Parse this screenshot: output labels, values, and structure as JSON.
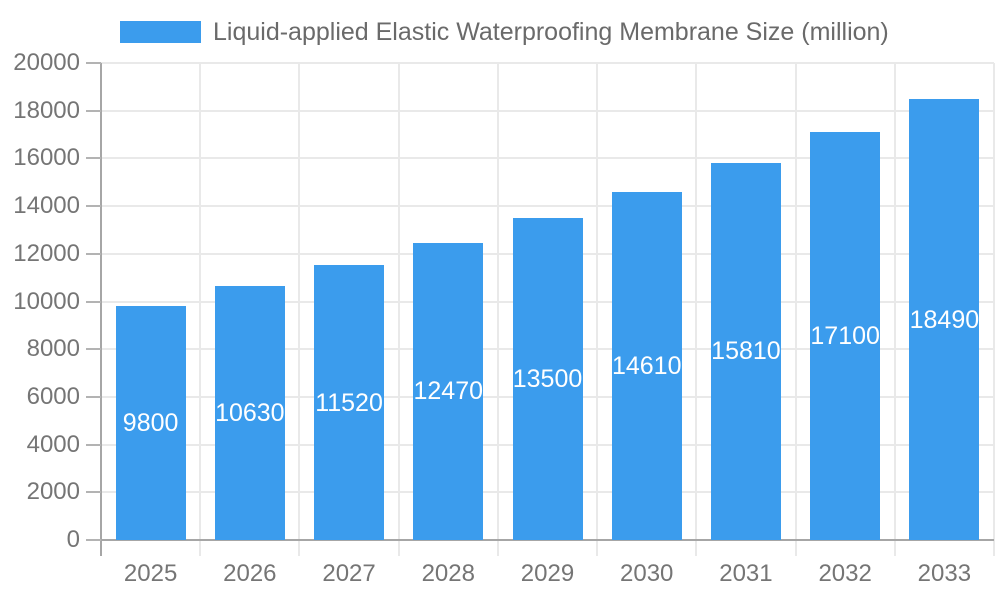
{
  "legend": {
    "position": "top-left"
  },
  "colors": {
    "bar": "#3B9CED",
    "grid": "#E9E9E9",
    "axis": "#A6A6A6",
    "tick": "#B3B3B3",
    "tick_text": "#757575",
    "legend_text": "#6A6A6A",
    "bar_label_text": "#FFFFFF",
    "background": "#FFFFFF"
  },
  "chart_data": {
    "type": "bar",
    "title": "Liquid-applied Elastic Waterproofing Membrane Size (million)",
    "categories": [
      "2025",
      "2026",
      "2027",
      "2028",
      "2029",
      "2030",
      "2031",
      "2032",
      "2033"
    ],
    "series": [
      {
        "name": "Liquid-applied Elastic Waterproofing Membrane Size (million)",
        "values": [
          9800,
          10630,
          11520,
          12470,
          13500,
          14610,
          15810,
          17100,
          18490
        ]
      }
    ],
    "xlabel": "",
    "ylabel": "",
    "ylim": [
      0,
      20000
    ],
    "yticks": [
      0,
      2000,
      4000,
      6000,
      8000,
      10000,
      12000,
      14000,
      16000,
      18000,
      20000
    ],
    "grid": true,
    "legend_position": "top-left",
    "value_labels": "inside-center"
  }
}
